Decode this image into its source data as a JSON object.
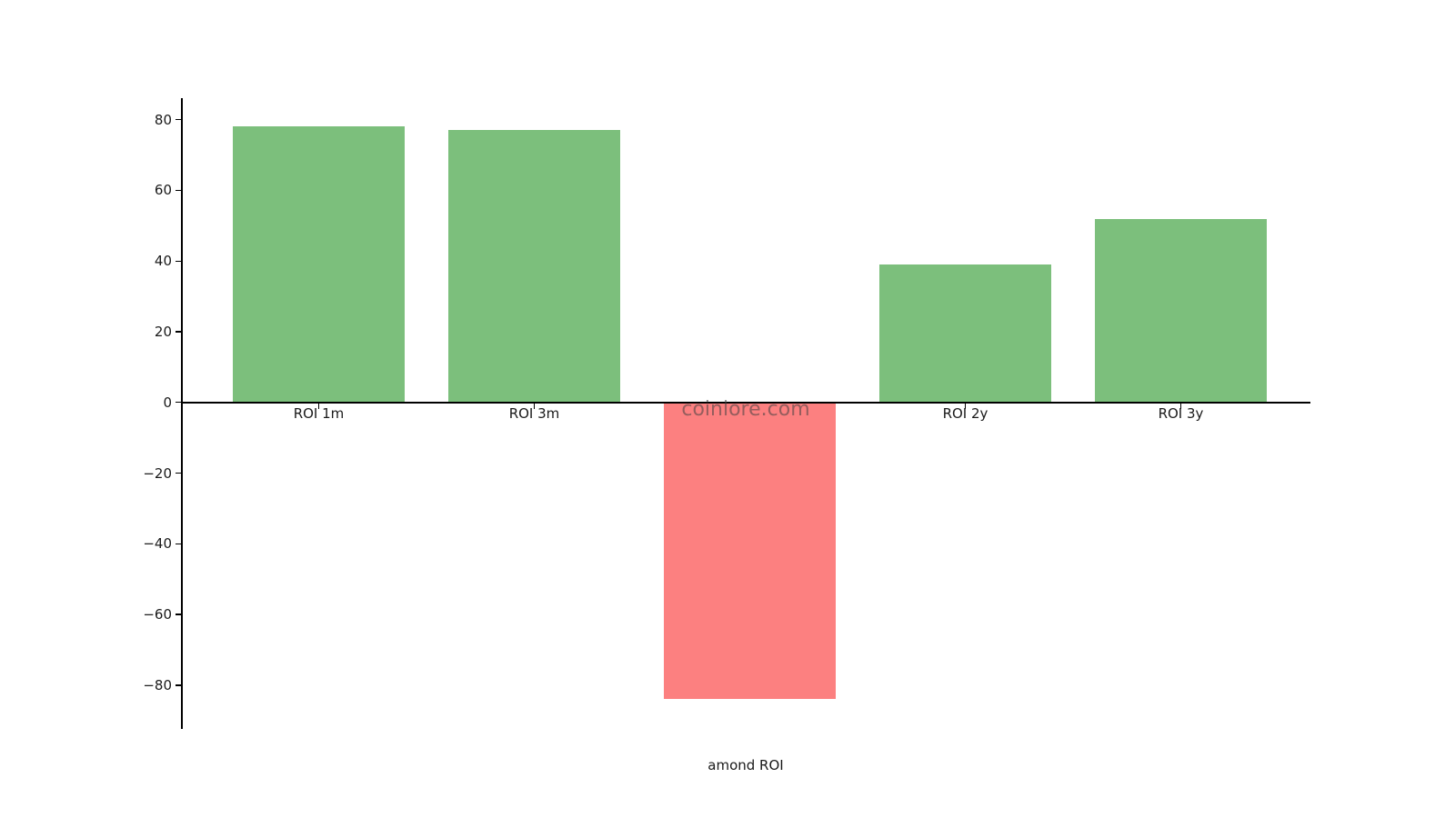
{
  "page": {
    "background_color": "#ffffff",
    "text_color": "#1a1a1a"
  },
  "chart_data": {
    "type": "bar",
    "title": "",
    "xlabel": "amond ROI",
    "ylabel": "",
    "categories": [
      "ROI 1m",
      "ROI 3m",
      "",
      "ROI 2y",
      "ROI 3y"
    ],
    "values": [
      78,
      77,
      -84,
      39,
      52
    ],
    "bar_colors": [
      "#7CBF7C",
      "#7CBF7C",
      "#FC8080",
      "#7CBF7C",
      "#7CBF7C"
    ],
    "positive_color": "#7CBF7C",
    "negative_color": "#FC8080",
    "yticks": [
      80,
      60,
      40,
      20,
      0,
      -20,
      -40,
      -60,
      -80
    ],
    "ylim": [
      -92.1,
      86.1
    ],
    "grid": false,
    "legend_position": "none",
    "watermark": "coinlore.com",
    "note_hidden_label": "middle bar tick label not visible (covered by negative bar)"
  }
}
